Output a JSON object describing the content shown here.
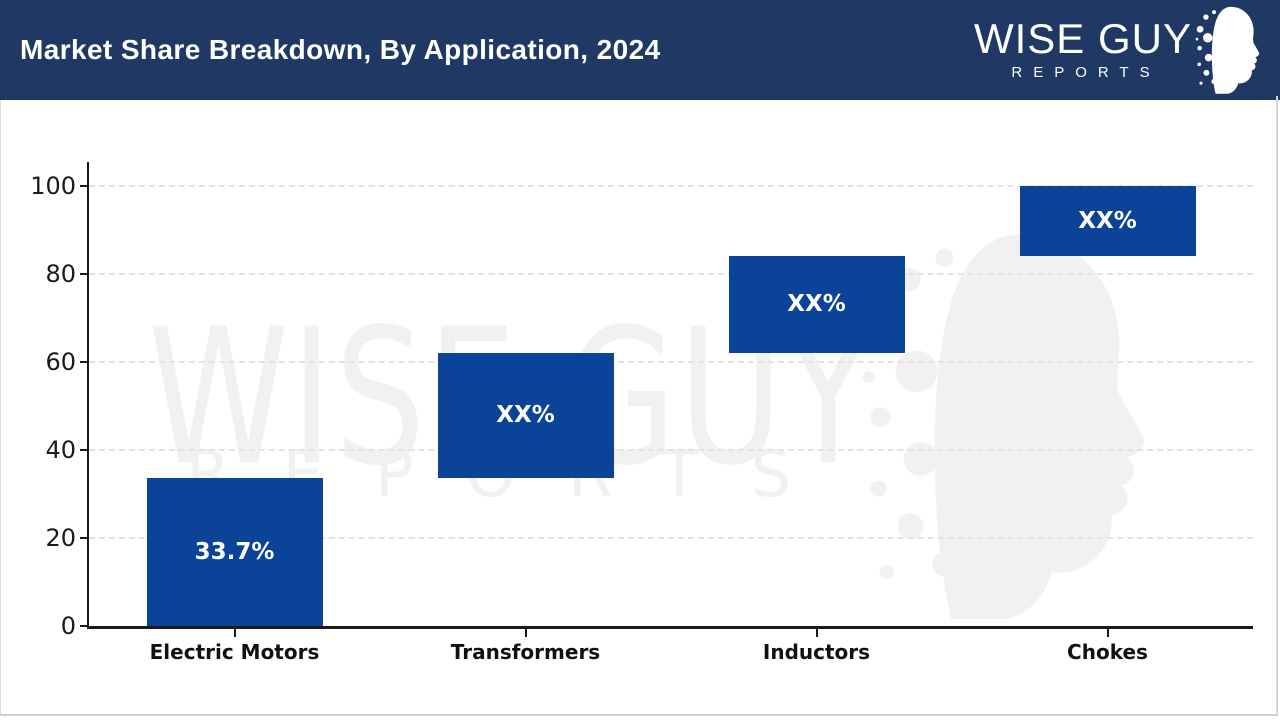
{
  "header": {
    "title": "Market Share Breakdown, By Application, 2024",
    "logo": {
      "line1": "WISE GUY",
      "line2": "REPORTS"
    },
    "bg_color": "#1f3864",
    "text_color": "#ffffff"
  },
  "watermark": {
    "line1": "WISE GUY",
    "line2": "REPORTS"
  },
  "colors": {
    "header_bg": "#1f3864",
    "bar_blue": "#0b4399",
    "axis": "#1a1a1a",
    "gridline": "#e3e3e3",
    "watermark_gray": "#f1f1f1",
    "frame_gray": "#cfcfcf"
  },
  "chart_data": {
    "type": "bar",
    "subtype": "waterfall",
    "title": "Market Share Breakdown, By Application, 2024",
    "categories": [
      "Electric Motors",
      "Transformers",
      "Inductors",
      "Chokes"
    ],
    "segments": [
      {
        "category": "Electric Motors",
        "start": 0,
        "end": 33.7,
        "value": 33.7,
        "value_label": "33.7%"
      },
      {
        "category": "Transformers",
        "start": 33.7,
        "end": 62,
        "value": 28.3,
        "value_label": "XX%"
      },
      {
        "category": "Inductors",
        "start": 62,
        "end": 84,
        "value": 22,
        "value_label": "XX%"
      },
      {
        "category": "Chokes",
        "start": 84,
        "end": 100,
        "value": 16,
        "value_label": "XX%"
      }
    ],
    "yticks": [
      0,
      20,
      40,
      60,
      80,
      100
    ],
    "ylim": [
      0,
      105
    ],
    "xlabel": "",
    "ylabel": "",
    "grid": "horizontal-dashed",
    "legend": "none",
    "bar_color": "#0b4399",
    "bar_label_color": "#ffffff"
  }
}
